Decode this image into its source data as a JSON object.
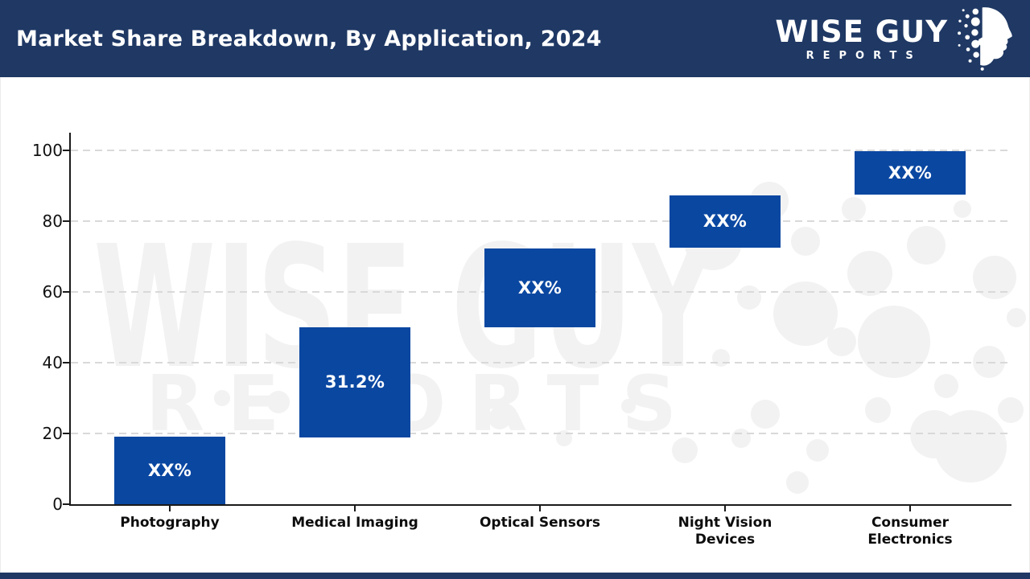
{
  "header": {
    "title": "Market Share Breakdown, By Application, 2024",
    "brand": {
      "name_top": "WISE GUY",
      "name_bottom": "REPORTS"
    }
  },
  "watermark": {
    "line1": "WISE GUY",
    "line2": "REPORTS"
  },
  "colors": {
    "header_bg": "#1f3864",
    "bar": "#0a47a1",
    "grid": "#d9d9d9",
    "axis": "#1a1a1a",
    "watermark": "#f2f2f2"
  },
  "chart_data": {
    "type": "bar",
    "subtype": "floating-waterfall",
    "title": "Market Share Breakdown, By Application, 2024",
    "categories": [
      "Photography",
      "Medical Imaging",
      "Optical Sensors",
      "Night Vision Devices",
      "Consumer Electronics"
    ],
    "segments": [
      {
        "category": "Photography",
        "lines": [
          "Photography"
        ],
        "start": 0,
        "end": 19,
        "label": "XX%"
      },
      {
        "category": "Medical Imaging",
        "lines": [
          "Medical Imaging"
        ],
        "start": 18.9,
        "end": 50.1,
        "label": "31.2%"
      },
      {
        "category": "Optical Sensors",
        "lines": [
          "Optical Sensors"
        ],
        "start": 50,
        "end": 72.3,
        "label": "XX%"
      },
      {
        "category": "Night Vision Devices",
        "lines": [
          "Night Vision",
          "Devices"
        ],
        "start": 72.5,
        "end": 87.3,
        "label": "XX%"
      },
      {
        "category": "Consumer Electronics",
        "lines": [
          "Consumer",
          "Electronics"
        ],
        "start": 87.5,
        "end": 99.8,
        "label": "XX%"
      }
    ],
    "yticks": [
      0,
      20,
      40,
      60,
      80,
      100
    ],
    "ylim": [
      0,
      105
    ],
    "xlabel": "",
    "ylabel": "",
    "grid": "horizontal-dashed",
    "legend": "none",
    "bar_color": "#0a47a1"
  }
}
